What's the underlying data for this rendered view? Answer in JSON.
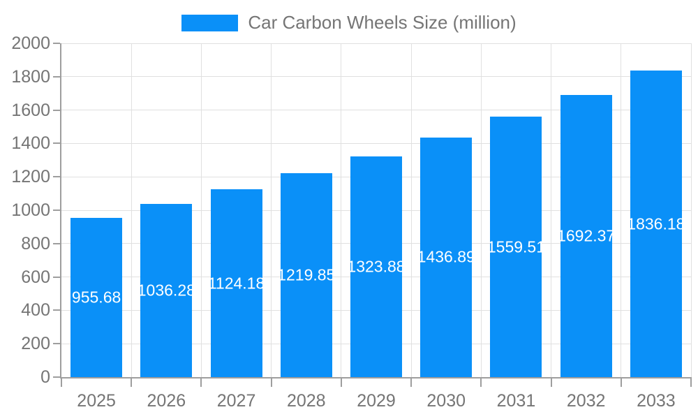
{
  "chart_data": {
    "type": "bar",
    "title": "Car Carbon Wheels Size (million)",
    "legend": {
      "label": "Car Carbon Wheels Size (million)",
      "position": "top-center"
    },
    "categories": [
      "2025",
      "2026",
      "2027",
      "2028",
      "2029",
      "2030",
      "2031",
      "2032",
      "2033"
    ],
    "series": [
      {
        "name": "Car Carbon Wheels Size (million)",
        "values": [
          955.68,
          1036.28,
          1124.18,
          1219.85,
          1323.88,
          1436.89,
          1559.51,
          1692.37,
          1836.18
        ]
      }
    ],
    "value_labels": [
      "955.68",
      "1036.28",
      "1124.18",
      "1219.85",
      "1323.88",
      "1436.89",
      "1559.51",
      "1692.37",
      "1836.18"
    ],
    "xlabel": "",
    "ylabel": "",
    "ylim": [
      0,
      2000
    ],
    "ytick_step": 200,
    "yticks": [
      0,
      200,
      400,
      600,
      800,
      1000,
      1200,
      1400,
      1600,
      1800,
      2000
    ],
    "grid": true,
    "colors": {
      "bar": "#0a90f8",
      "axis": "#9e9e9e",
      "grid": "#e0e0e0",
      "tick_text": "#757575",
      "bar_label": "#ffffff",
      "background": "#ffffff"
    }
  }
}
